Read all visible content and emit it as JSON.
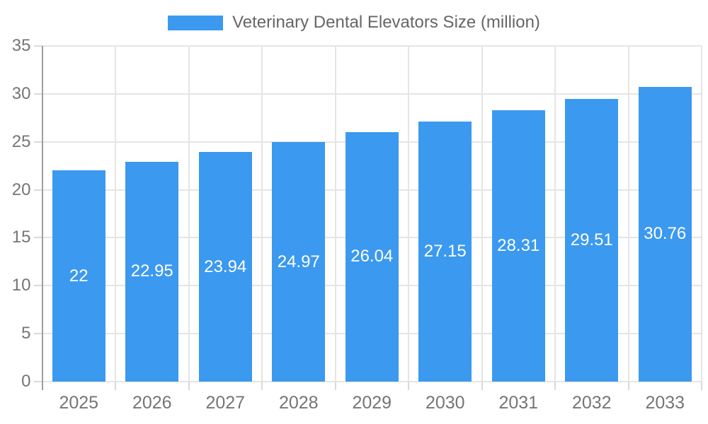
{
  "legend": {
    "label": "Veterinary Dental Elevators Size (million)",
    "swatch_color": "#3b99ef"
  },
  "chart_data": {
    "type": "bar",
    "title": "Veterinary Dental Elevators Size (million)",
    "categories": [
      "2025",
      "2026",
      "2027",
      "2028",
      "2029",
      "2030",
      "2031",
      "2032",
      "2033"
    ],
    "values": [
      22,
      22.95,
      23.94,
      24.97,
      26.04,
      27.15,
      28.31,
      29.51,
      30.76
    ],
    "value_labels": [
      "22",
      "22.95",
      "23.94",
      "24.97",
      "26.04",
      "27.15",
      "28.31",
      "29.51",
      "30.76"
    ],
    "xlabel": "",
    "ylabel": "",
    "ylim": [
      0,
      35
    ],
    "yticks": [
      0,
      5,
      10,
      15,
      20,
      25,
      30,
      35
    ],
    "grid": true,
    "legend_position": "top",
    "colors": {
      "bar": "#3b99ef",
      "value_label": "#ffffff",
      "axis_label": "#757575",
      "gridline": "#e5e5e5",
      "tick": "#d9d9d9",
      "axis_line": "#9e9e9e",
      "legend_text": "#666666"
    }
  }
}
